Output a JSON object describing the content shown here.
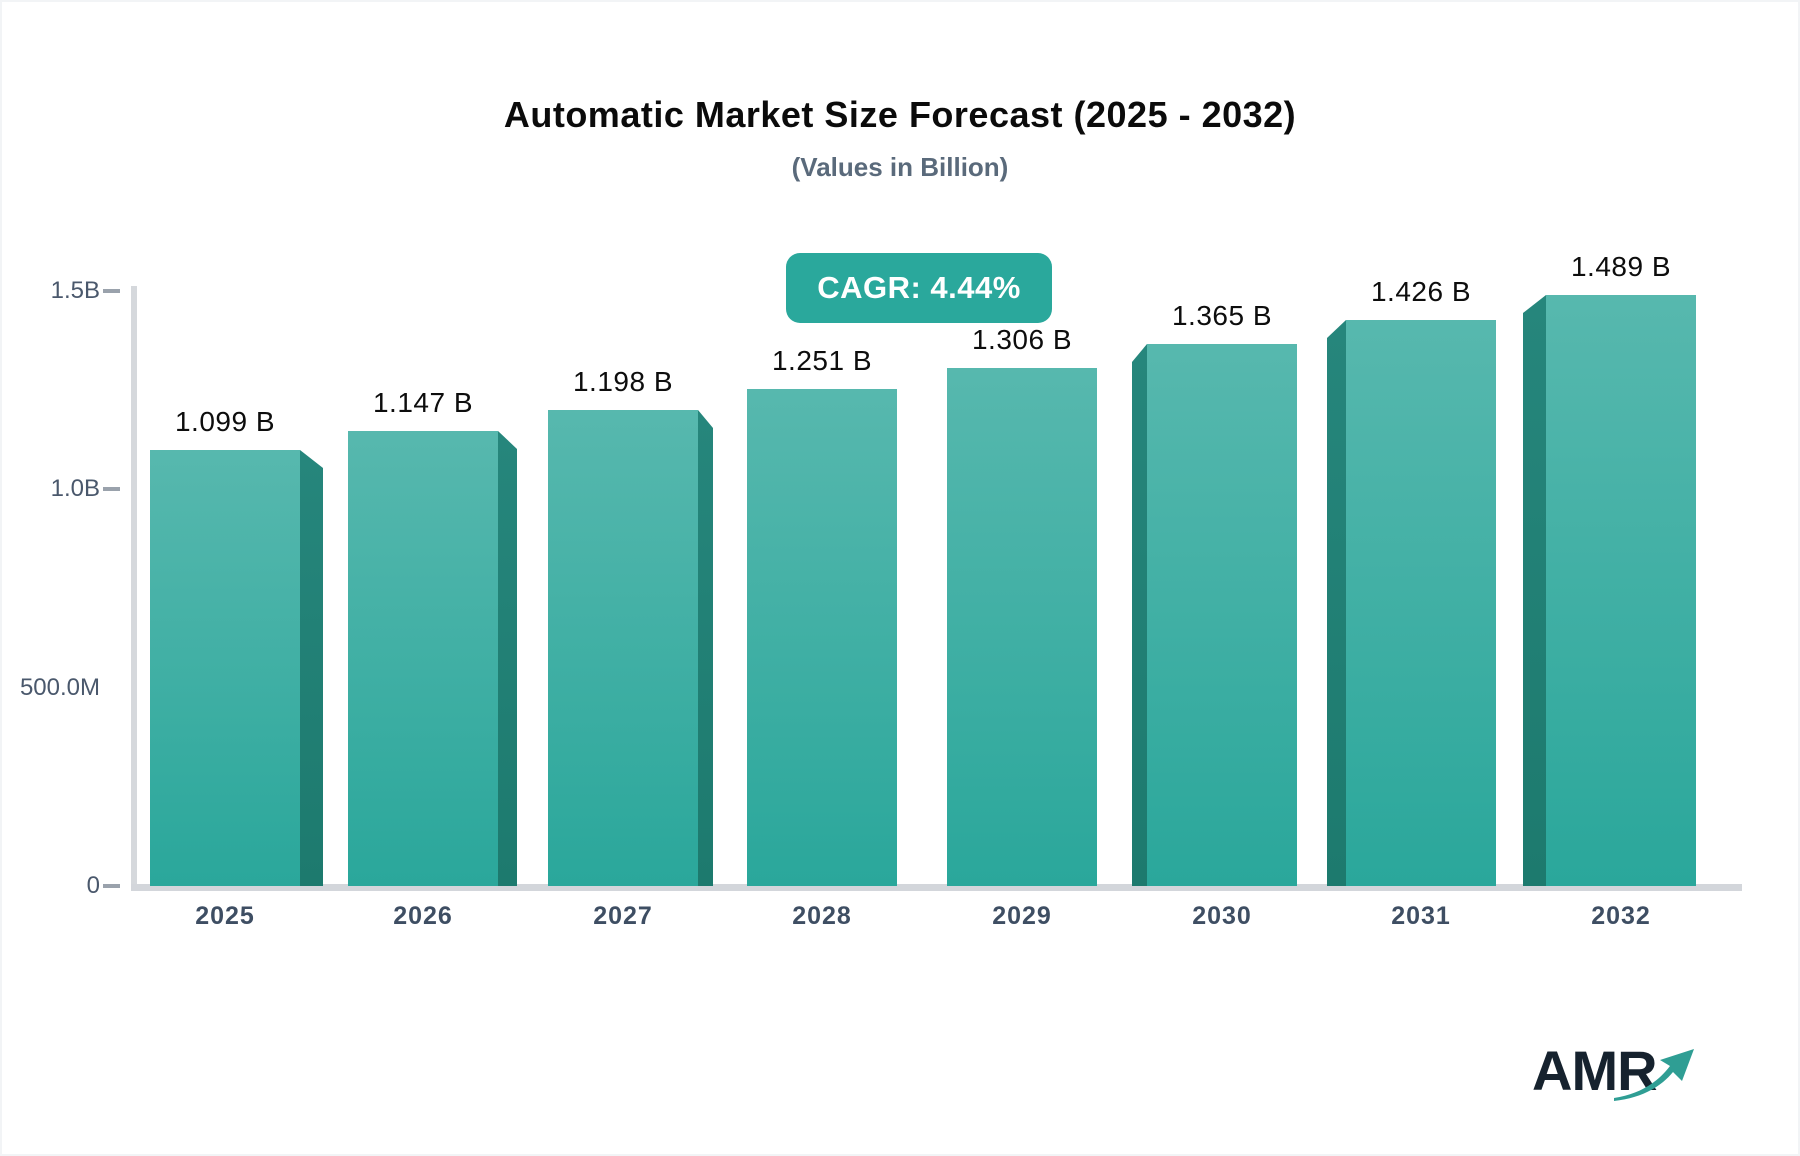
{
  "header": {
    "title": "Automatic Market Size Forecast (2025 - 2032)",
    "subtitle": "(Values in Billion)"
  },
  "badge": {
    "text": "CAGR: 4.44%"
  },
  "logo": {
    "text": "AMR",
    "arrow_icon": "growth-arrow-icon"
  },
  "colors": {
    "bar_top": "#57b8ae",
    "bar_bottom": "#2aa79b",
    "bar_side_top": "#26867c",
    "bar_side_bottom": "#1d7a6e",
    "badge_bg": "#2aa89c",
    "axis_line": "#d3d6db",
    "tick_dash": "#9aa2ac",
    "y_label": "#4a586c",
    "year_label": "#3e4e63",
    "value_label": "#0d0d0d",
    "logo_text": "#16222e",
    "logo_arrow": "#2f9e94"
  },
  "chart_data": {
    "type": "bar",
    "title": "Automatic Market Size Forecast (2025 - 2032)",
    "subtitle": "(Values in Billion)",
    "cagr_label": "CAGR: 4.44%",
    "cagr_percent": 4.44,
    "categories": [
      "2025",
      "2026",
      "2027",
      "2028",
      "2029",
      "2030",
      "2031",
      "2032"
    ],
    "values": [
      1.099,
      1.147,
      1.198,
      1.251,
      1.306,
      1.365,
      1.426,
      1.489
    ],
    "value_labels": [
      "1.099 B",
      "1.147 B",
      "1.198 B",
      "1.251 B",
      "1.306 B",
      "1.365 B",
      "1.426 B",
      "1.489 B"
    ],
    "unit": "Billion",
    "xlabel": "",
    "ylabel": "",
    "ylim": [
      0,
      1.5
    ],
    "yticks": [
      {
        "label": "1.5B",
        "value": 1.5,
        "dash": true
      },
      {
        "label": "1.0B",
        "value": 1.0,
        "dash": true
      },
      {
        "label": "500.0M",
        "value": 0.5,
        "dash": false
      },
      {
        "label": "0",
        "value": 0,
        "dash": true
      }
    ],
    "grid": false,
    "legend": false
  }
}
